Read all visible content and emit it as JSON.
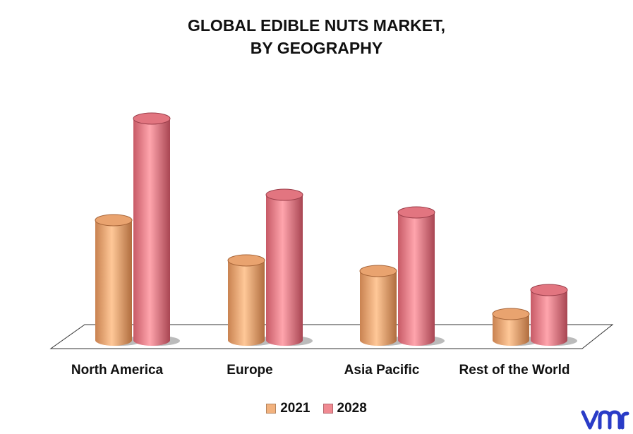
{
  "title_line1": "GLOBAL EDIBLE NUTS MARKET,",
  "title_line2": "BY GEOGRAPHY",
  "chart_data": {
    "type": "bar",
    "title": "GLOBAL EDIBLE NUTS MARKET, BY GEOGRAPHY",
    "categories": [
      "North America",
      "Europe",
      "Asia Pacific",
      "Rest of the World"
    ],
    "series": [
      {
        "name": "2021",
        "values": [
          170,
          113,
          98,
          37
        ],
        "color": "#f2b27e"
      },
      {
        "name": "2028",
        "values": [
          314,
          206,
          181,
          71
        ],
        "color": "#f08a92"
      }
    ],
    "ylim": [
      0,
      330
    ],
    "grid": false,
    "legend_position": "bottom"
  },
  "legend": [
    {
      "label": "2021",
      "color": "#f2b27e"
    },
    {
      "label": "2028",
      "color": "#f08a92"
    }
  ],
  "logo_text": "vmr",
  "logo_color": "#2a3cc7"
}
